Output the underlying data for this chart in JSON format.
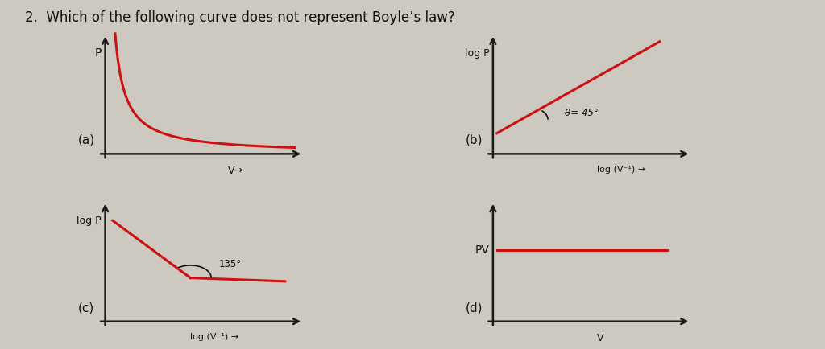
{
  "bg_color": "#cdc9c0",
  "question_text": "2.  Which of the following curve does not represent Boyle’s law?",
  "curve_color": "#cc1111",
  "axis_color": "#1a1a1a",
  "label_color": "#111111",
  "subplots": [
    {
      "label": "(a)",
      "type": "hyperbola",
      "xlabel": "V→",
      "ylabel": "P"
    },
    {
      "label": "(b)",
      "type": "log_line_pos",
      "xlabel": "log (V⁻¹) →",
      "ylabel": "log P",
      "angle_label": "θ= 45°"
    },
    {
      "label": "(c)",
      "type": "log_line_neg",
      "xlabel": "log (V⁻¹) →",
      "ylabel": "log P",
      "angle_label": "135°"
    },
    {
      "label": "(d)",
      "type": "pv_flat",
      "xlabel": "V",
      "ylabel": "PV"
    }
  ]
}
